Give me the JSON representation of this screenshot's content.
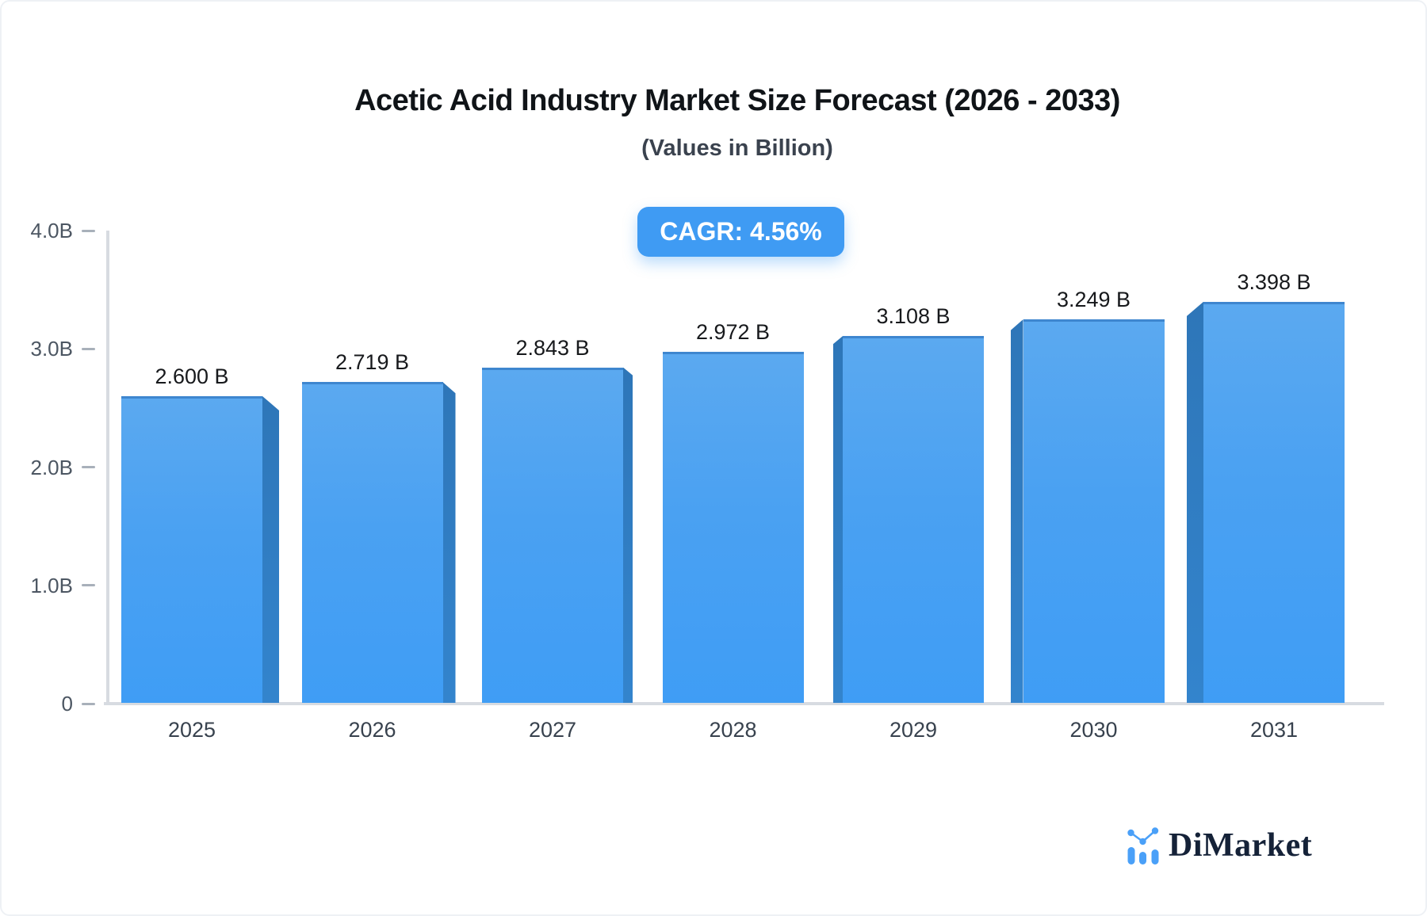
{
  "header": {
    "title": "Acetic Acid Industry Market Size Forecast (2026 - 2033)",
    "subtitle": "(Values in Billion)"
  },
  "badge": {
    "label": "CAGR: 4.56%"
  },
  "chart_data": {
    "type": "bar",
    "title": "Acetic Acid Industry Market Size Forecast (2026 - 2033)",
    "subtitle": "(Values in Billion)",
    "categories": [
      "2025",
      "2026",
      "2027",
      "2028",
      "2029",
      "2030",
      "2031"
    ],
    "values": [
      2.6,
      2.719,
      2.843,
      2.972,
      3.108,
      3.249,
      3.398
    ],
    "value_labels": [
      "2.600 B",
      "2.719 B",
      "2.843 B",
      "2.972 B",
      "3.108 B",
      "3.249 B",
      "3.398 B"
    ],
    "yticks": [
      {
        "label": "4.0B",
        "value": 4.0
      },
      {
        "label": "3.0B",
        "value": 3.0
      },
      {
        "label": "2.0B",
        "value": 2.0
      },
      {
        "label": "1.0B",
        "value": 1.0
      },
      {
        "label": "0",
        "value": 0.0
      }
    ],
    "ylim": [
      0,
      4
    ],
    "xlabel": "",
    "ylabel": "",
    "grid": false,
    "legend_position": "none",
    "annotation": "CAGR: 4.56%",
    "style": "3d-bars"
  },
  "colors": {
    "bar_top": "#5ba9f0",
    "bar_bottom": "#3f9df5",
    "bar_edge": "#3e86cf",
    "bar_side": "#2f7abd",
    "badge_bg": "#3f9bf3",
    "badge_text": "#ffffff",
    "axis_line": "#d7dbe1",
    "tick_dash": "#a8b0ba",
    "y_label": "#4c5662",
    "x_label": "#38424e",
    "value_label": "#17191c",
    "title": "#101418",
    "subtitle": "#3a424e",
    "logo_blue": "#4aa0f8",
    "logo_text": "#152238"
  },
  "logo": {
    "text": "DiMarket",
    "icon": "mini-bar-chart-with-dots"
  }
}
